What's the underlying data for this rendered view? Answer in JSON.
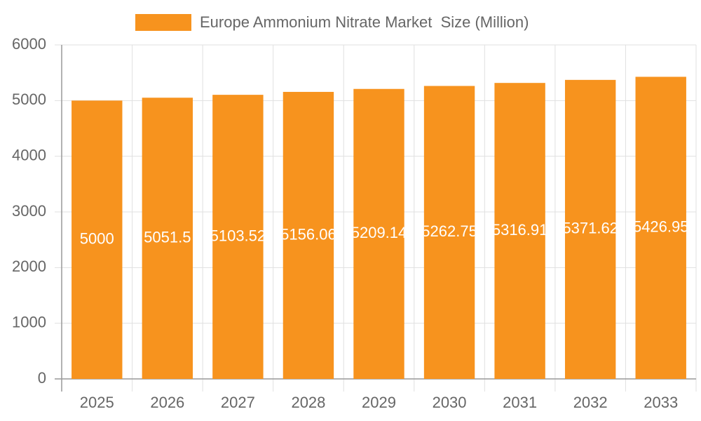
{
  "chart_data": {
    "type": "bar",
    "categories": [
      "2025",
      "2026",
      "2027",
      "2028",
      "2029",
      "2030",
      "2031",
      "2032",
      "2033"
    ],
    "series": [
      {
        "name": "Europe Ammonium Nitrate Market  Size (Million)",
        "color": "#f7931e",
        "values": [
          5000,
          5051.5,
          5103.52,
          5156.06,
          5209.14,
          5262.75,
          5316.91,
          5371.62,
          5426.95
        ]
      }
    ],
    "ylim": [
      0,
      6000
    ],
    "yticks": [
      0,
      1000,
      2000,
      3000,
      4000,
      5000,
      6000
    ],
    "grid": true,
    "legend": "top"
  }
}
